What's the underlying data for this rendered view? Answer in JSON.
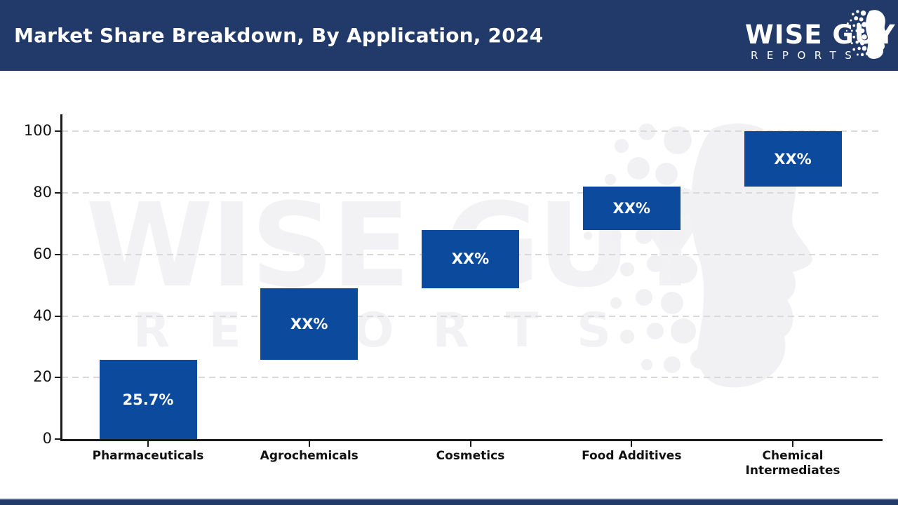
{
  "header": {
    "title": "Market Share Breakdown, By Application, 2024",
    "logo": {
      "line1": "WISE GUY",
      "line2": "REPORTS"
    }
  },
  "watermark": {
    "line1": "WISE GUY",
    "line2": "REPORTS"
  },
  "colors": {
    "header_bg": "#213a69",
    "footer_bg": "#213a69",
    "bar": "#0c4a9e",
    "bar_label": "#ffffff",
    "gridline": "#d9d9d9",
    "axis": "#1a1a1a",
    "watermark": "#f2f2f4"
  },
  "chart_data": {
    "type": "bar",
    "subtype": "floating-waterfall",
    "title": "Market Share Breakdown, By Application, 2024",
    "categories": [
      "Pharmaceuticals",
      "Agrochemicals",
      "Cosmetics",
      "Food Additives",
      "Chemical Intermediates"
    ],
    "segments": [
      {
        "category": "Pharmaceuticals",
        "start": 0,
        "end": 25.7,
        "label": "25.7%"
      },
      {
        "category": "Agrochemicals",
        "start": 25.7,
        "end": 49,
        "label": "XX%"
      },
      {
        "category": "Cosmetics",
        "start": 49,
        "end": 68,
        "label": "XX%"
      },
      {
        "category": "Food Additives",
        "start": 68,
        "end": 82,
        "label": "XX%"
      },
      {
        "category": "Chemical Intermediates",
        "start": 82,
        "end": 100,
        "label": "XX%"
      }
    ],
    "xlabel": "",
    "ylabel": "",
    "yticks": [
      0,
      20,
      40,
      60,
      80,
      100
    ],
    "ylim": [
      0,
      105.5
    ],
    "grid": "horizontal-dashed",
    "legend": "none"
  }
}
